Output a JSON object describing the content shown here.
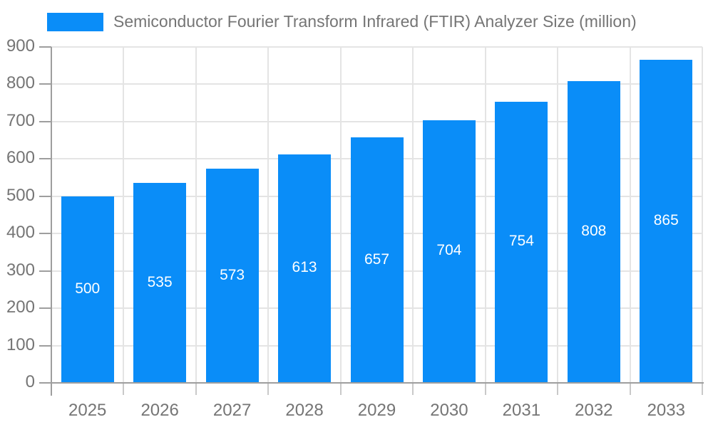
{
  "legend": {
    "label": "Semiconductor Fourier Transform Infrared (FTIR) Analyzer Size (million)"
  },
  "chart_data": {
    "type": "bar",
    "title": "Semiconductor Fourier Transform Infrared (FTIR) Analyzer Size (million)",
    "categories": [
      "2025",
      "2026",
      "2027",
      "2028",
      "2029",
      "2030",
      "2031",
      "2032",
      "2033"
    ],
    "series": [
      {
        "name": "Semiconductor Fourier Transform Infrared (FTIR) Analyzer Size (million)",
        "values": [
          500,
          535,
          573,
          613,
          657,
          704,
          754,
          808,
          865
        ]
      }
    ],
    "xlabel": "",
    "ylabel": "",
    "ylim": [
      0,
      900
    ],
    "ytick_interval": 100,
    "yticks": [
      0,
      100,
      200,
      300,
      400,
      500,
      600,
      700,
      800,
      900
    ],
    "grid": true,
    "bar_labels_inside": true,
    "legend_position": "top-left"
  },
  "colors": {
    "bar": "#0A8DF8",
    "grid": "#E4E4E4",
    "axis": "#9E9E9E",
    "minor_tick": "#C9C9C9",
    "text": "#757575",
    "bar_label": "#FFFFFF",
    "background": "#FFFFFF"
  }
}
